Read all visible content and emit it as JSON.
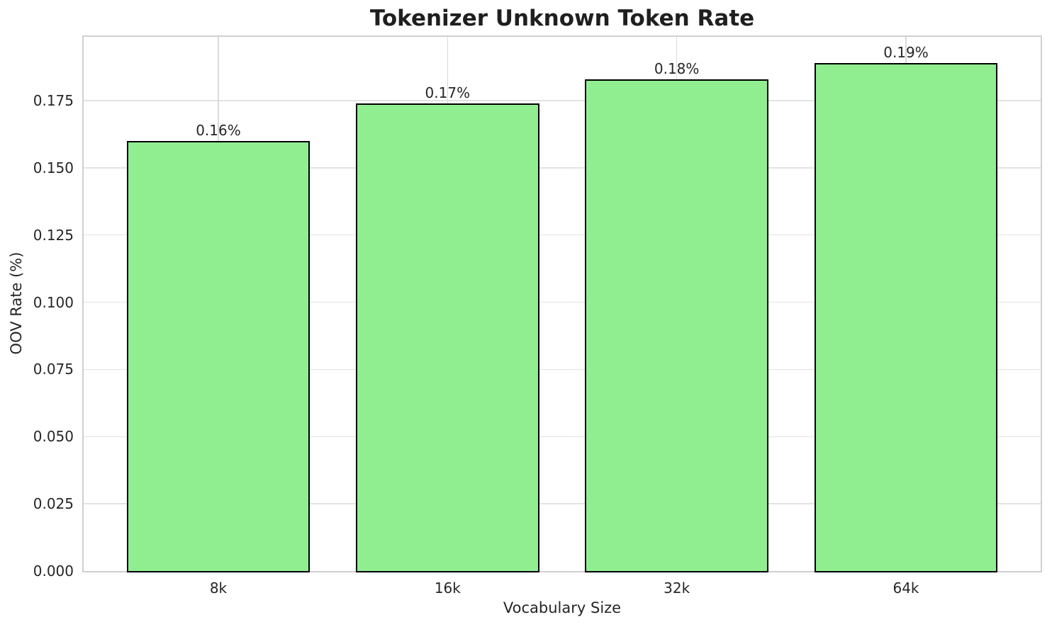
{
  "chart_data": {
    "type": "bar",
    "title": "Tokenizer Unknown Token Rate",
    "xlabel": "Vocabulary Size",
    "ylabel": "OOV Rate (%)",
    "categories": [
      "8k",
      "16k",
      "32k",
      "64k"
    ],
    "values": [
      0.16,
      0.174,
      0.183,
      0.189
    ],
    "bar_labels": [
      "0.16%",
      "0.17%",
      "0.18%",
      "0.19%"
    ],
    "yticks": [
      "0.000",
      "0.025",
      "0.050",
      "0.075",
      "0.100",
      "0.125",
      "0.150",
      "0.175"
    ],
    "ytick_values": [
      0,
      0.025,
      0.05,
      0.075,
      0.1,
      0.125,
      0.15,
      0.175
    ],
    "ylim": [
      0,
      0.1987
    ],
    "grid": true,
    "legend": "none",
    "bar_color": "#90EE90",
    "bar_edge_color": "#000000",
    "colors": {
      "text": "#262626",
      "title": "#1f1f1f",
      "grid_h": "#e3e3e3",
      "grid_v": "#dadada",
      "spine": "#d0d0d0",
      "background": "#ffffff"
    }
  }
}
